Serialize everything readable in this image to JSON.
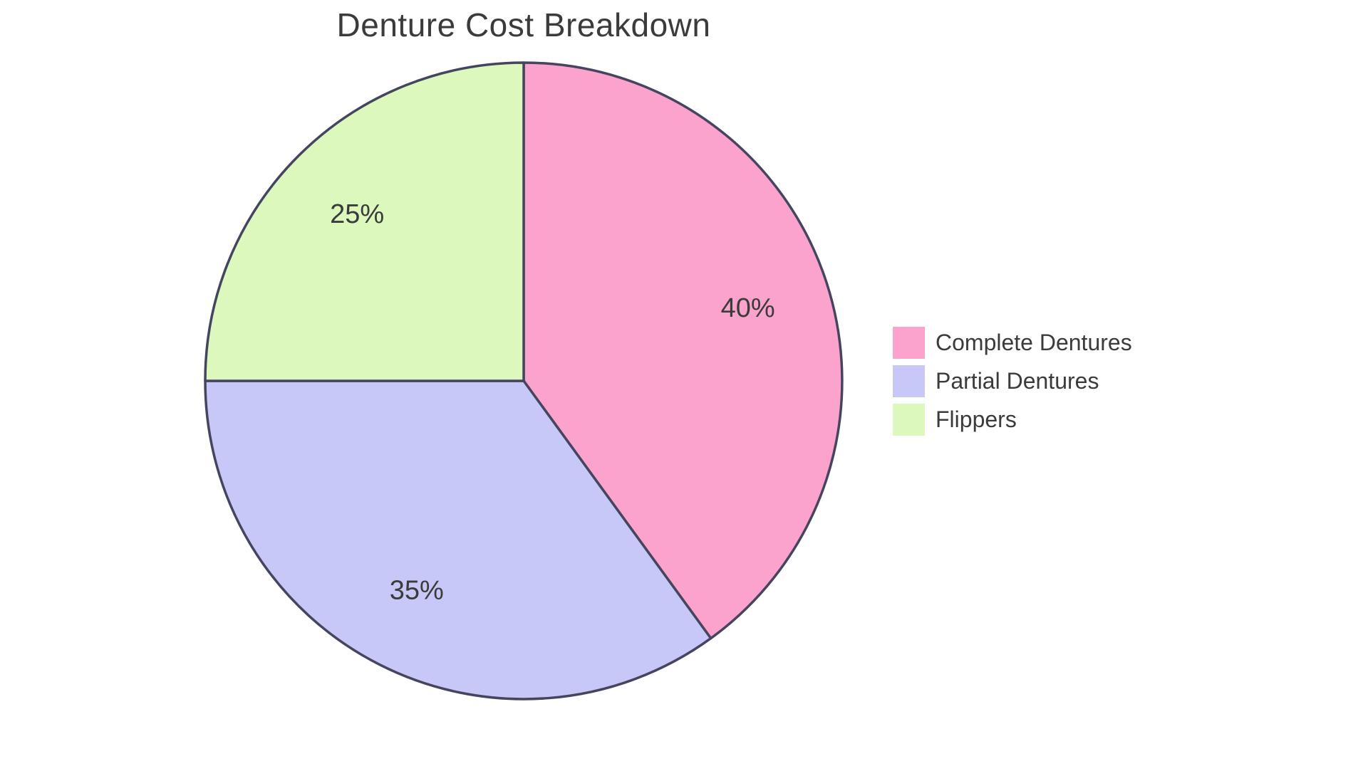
{
  "chart_data": {
    "type": "pie",
    "title": "Denture Cost Breakdown",
    "labels": [
      "Complete Dentures",
      "Partial Dentures",
      "Flippers"
    ],
    "values": [
      40,
      35,
      25
    ],
    "value_labels": [
      "40%",
      "35%",
      "25%"
    ],
    "colors": [
      "#FBA3CD",
      "#C8C8F8",
      "#DCF8BD"
    ],
    "slice_border_color": "#45455F",
    "slice_border_width": 3.5,
    "text_color": "#3b3b3b",
    "start_angle_deg": 0,
    "direction": "clockwise",
    "legend_position": "right",
    "grid": false
  }
}
